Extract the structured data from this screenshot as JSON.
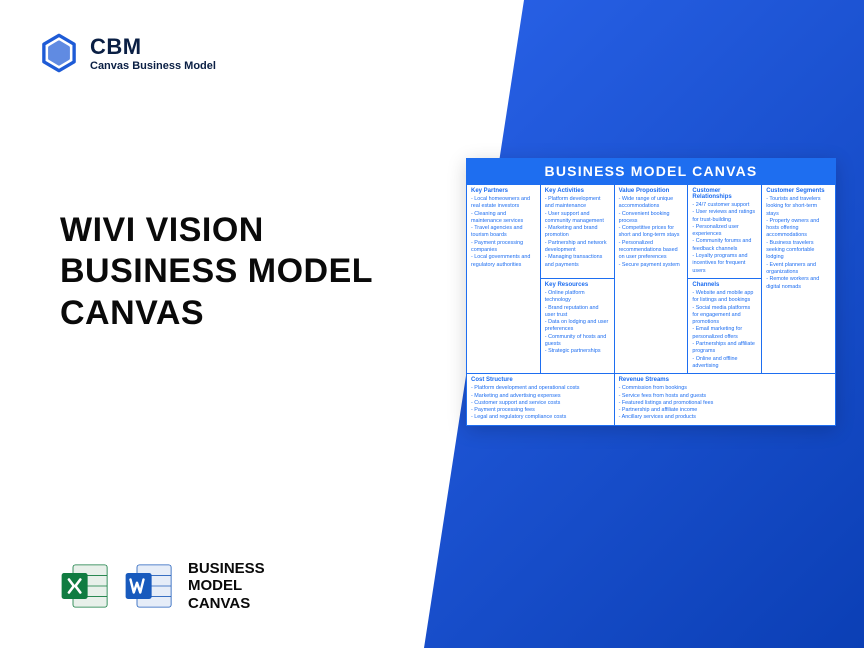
{
  "brand": {
    "name": "CBM",
    "subtitle": "Canvas Business Model"
  },
  "title": {
    "line1": "WIVI VISION",
    "line2": "BUSINESS MODEL",
    "line3": "CANVAS"
  },
  "footer": {
    "line1": "BUSINESS",
    "line2": "MODEL",
    "line3": "CANVAS"
  },
  "canvas": {
    "heading": "BUSINESS MODEL CANVAS",
    "sections": {
      "key_partners": {
        "title": "Key Partners",
        "items": [
          "Local homeowners and real estate investors",
          "Cleaning and maintenance services",
          "Travel agencies and tourism boards",
          "Payment processing companies",
          "Local governments and regulatory authorities"
        ]
      },
      "key_activities": {
        "title": "Key Activities",
        "items": [
          "Platform development and maintenance",
          "User support and community management",
          "Marketing and brand promotion",
          "Partnership and network development",
          "Managing transactions and payments"
        ]
      },
      "key_resources": {
        "title": "Key Resources",
        "items": [
          "Online platform technology",
          "Brand reputation and user trust",
          "Data on lodging and user preferences",
          "Community of hosts and guests",
          "Strategic partnerships"
        ]
      },
      "value_proposition": {
        "title": "Value Proposition",
        "items": [
          "Wide range of unique accommodations",
          "Convenient booking process",
          "Competitive prices for short and long-term stays",
          "Personalized recommendations based on user preferences",
          "Secure payment system"
        ]
      },
      "customer_relationships": {
        "title": "Customer Relationships",
        "items": [
          "24/7 customer support",
          "User reviews and ratings for trust-building",
          "Personalized user experiences",
          "Community forums and feedback channels",
          "Loyalty programs and incentives for frequent users"
        ]
      },
      "channels": {
        "title": "Channels",
        "items": [
          "Website and mobile app for listings and bookings",
          "Social media platforms for engagement and promotions",
          "Email marketing for personalized offers",
          "Partnerships and affiliate programs",
          "Online and offline advertising"
        ]
      },
      "customer_segments": {
        "title": "Customer Segments",
        "items": [
          "Tourists and travelers looking for short-term stays",
          "Property owners and hosts offering accommodations",
          "Business travelers seeking comfortable lodging",
          "Event planners and organizations",
          "Remote workers and digital nomads"
        ]
      },
      "cost_structure": {
        "title": "Cost Structure",
        "items": [
          "Platform development and operational costs",
          "Marketing and advertising expenses",
          "Customer support and service costs",
          "Payment processing fees",
          "Legal and regulatory compliance costs"
        ]
      },
      "revenue_streams": {
        "title": "Revenue Streams",
        "items": [
          "Commission from bookings",
          "Service fees from hosts and guests",
          "Featured listings and promotional fees",
          "Partnership and affiliate income",
          "Ancillary services and products"
        ]
      }
    }
  },
  "colors": {
    "accent": "#1e6ef0",
    "dark_navy": "#0a1f44",
    "gradient_start": "#2962e8",
    "gradient_end": "#0b3fb5"
  }
}
